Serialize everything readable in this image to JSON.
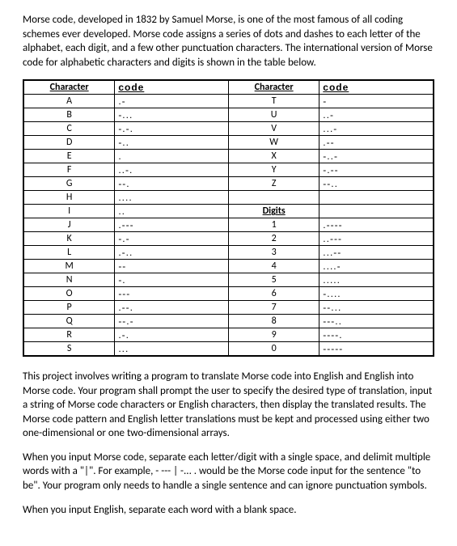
{
  "intro": "Morse code, developed in 1832 by Samuel Morse,  is one of the most famous of all coding schemes ever developed. Morse code assigns a series of dots and dashes to each letter of the alphabet, each digit, and a few other punctuation characters. The international version of Morse code for alphabetic characters and digits is shown in the table below.",
  "headers": {
    "char": "Character",
    "code": "code",
    "digits": "Digits"
  },
  "left": [
    {
      "c": "A",
      "m": ".-"
    },
    {
      "c": "B",
      "m": "-..."
    },
    {
      "c": "C",
      "m": "-.-."
    },
    {
      "c": "D",
      "m": "-.."
    },
    {
      "c": "E",
      "m": "."
    },
    {
      "c": "F",
      "m": "..-."
    },
    {
      "c": "G",
      "m": "--."
    },
    {
      "c": "H",
      "m": "...."
    },
    {
      "c": "I",
      "m": ".."
    },
    {
      "c": "J",
      "m": ".---"
    },
    {
      "c": "K",
      "m": "-.-"
    },
    {
      "c": "L",
      "m": ".-.."
    },
    {
      "c": "M",
      "m": "--"
    },
    {
      "c": "N",
      "m": "-."
    },
    {
      "c": "O",
      "m": "---"
    },
    {
      "c": "P",
      "m": ".--."
    },
    {
      "c": "Q",
      "m": "--.-"
    },
    {
      "c": "R",
      "m": ".-."
    },
    {
      "c": "S",
      "m": "..."
    }
  ],
  "rightLetters": [
    {
      "c": "T",
      "m": "-"
    },
    {
      "c": "U",
      "m": "..-"
    },
    {
      "c": "V",
      "m": "...-"
    },
    {
      "c": "W",
      "m": ".--"
    },
    {
      "c": "X",
      "m": "-..-"
    },
    {
      "c": "Y",
      "m": "-.--"
    },
    {
      "c": "Z",
      "m": "--.."
    }
  ],
  "rightDigits": [
    {
      "c": "1",
      "m": ".----"
    },
    {
      "c": "2",
      "m": "..---"
    },
    {
      "c": "3",
      "m": "...--"
    },
    {
      "c": "4",
      "m": "....-"
    },
    {
      "c": "5",
      "m": "....."
    },
    {
      "c": "6",
      "m": "-...."
    },
    {
      "c": "7",
      "m": "--..."
    },
    {
      "c": "8",
      "m": "---.."
    },
    {
      "c": "9",
      "m": "----."
    },
    {
      "c": "0",
      "m": "-----"
    }
  ],
  "layout": {
    "totalRows": 19,
    "digitsHeaderRow": 8
  },
  "para1": "This project involves writing a program to translate Morse code into English and English into Morse code. Your program shall prompt the user to specify the desired type of translation, input a string of Morse code characters or English characters, then display the translated results.  The Morse code pattern and English letter translations must be kept and processed using either two one-dimensional or one two-dimensional arrays.",
  "para2": "When you input Morse code, separate each letter/digit with a single space, and delimit multiple words with a \"|\". For example, - --- | -... . would be the Morse code input for the sentence \"to be\".  Your program only needs to handle a single sentence and can ignore punctuation symbols.",
  "para3": "When you input English, separate each word with a blank space."
}
